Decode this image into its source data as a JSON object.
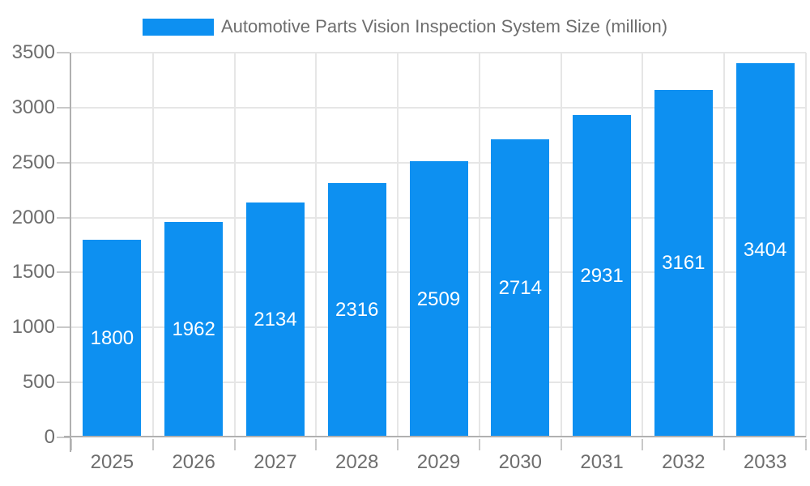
{
  "chart_data": {
    "type": "bar",
    "title": "Automotive Parts Vision Inspection System Size (million)",
    "categories": [
      "2025",
      "2026",
      "2027",
      "2028",
      "2029",
      "2030",
      "2031",
      "2032",
      "2033"
    ],
    "values": [
      1800,
      1962,
      2134,
      2316,
      2509,
      2714,
      2931,
      3161,
      3404
    ],
    "series": [
      {
        "name": "Automotive Parts Vision Inspection System Size (million)",
        "values": [
          1800,
          1962,
          2134,
          2316,
          2509,
          2714,
          2931,
          3161,
          3404
        ]
      }
    ],
    "xlabel": "",
    "ylabel": "",
    "ylim": [
      0,
      3500
    ],
    "yticks": [
      0,
      500,
      1000,
      1500,
      2000,
      2500,
      3000,
      3500
    ],
    "grid": true,
    "legend_position": "top",
    "bar_color": "#0d90f1",
    "bar_label_color": "#ffffff",
    "grid_color": "#e6e6e6",
    "axis_color": "#b0b0b0",
    "tick_color": "#c9c9c9",
    "text_color": "#6e6e6e"
  }
}
